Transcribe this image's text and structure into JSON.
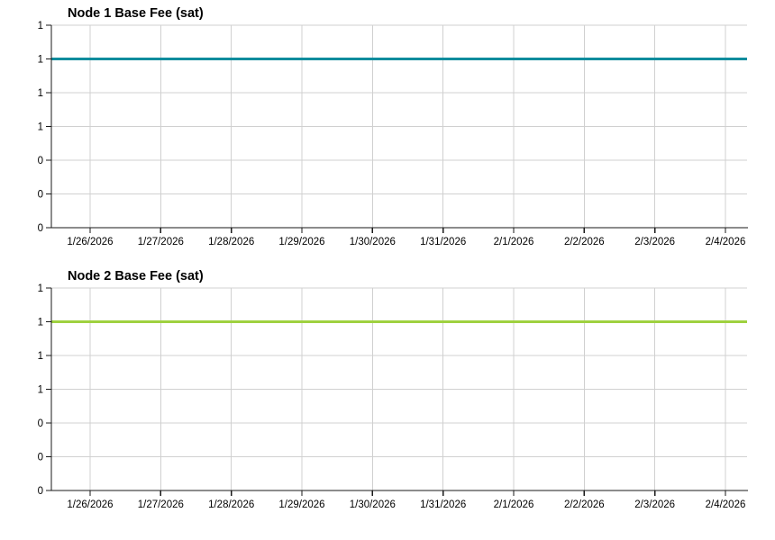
{
  "page": {
    "background": "#ffffff"
  },
  "chart_data": [
    {
      "type": "line",
      "title": "Node 1 Base Fee (sat)",
      "xlabel": "",
      "ylabel": "",
      "x": [
        "1/26/2026",
        "1/27/2026",
        "1/28/2026",
        "1/29/2026",
        "1/30/2026",
        "1/31/2026",
        "2/1/2026",
        "2/2/2026",
        "2/3/2026",
        "2/4/2026"
      ],
      "series": [
        {
          "name": "Node 1 Base Fee (sat)",
          "values": [
            1,
            1,
            1,
            1,
            1,
            1,
            1,
            1,
            1,
            1
          ],
          "color": "#0e8c9d"
        }
      ],
      "ylim": [
        0,
        1.2
      ],
      "y_ticks": [
        0,
        0.2,
        0.4,
        0.6,
        0.8,
        1,
        1.2
      ],
      "y_tick_labels": [
        "0",
        "0",
        "0",
        "1",
        "1",
        "1",
        "1"
      ],
      "grid": true,
      "legend": "none",
      "colors": {
        "grid": "#d0d0d0",
        "axis": "#1a1a1a",
        "tick_text": "#000000"
      }
    },
    {
      "type": "line",
      "title": "Node 2 Base Fee (sat)",
      "xlabel": "",
      "ylabel": "",
      "x": [
        "1/26/2026",
        "1/27/2026",
        "1/28/2026",
        "1/29/2026",
        "1/30/2026",
        "1/31/2026",
        "2/1/2026",
        "2/2/2026",
        "2/3/2026",
        "2/4/2026"
      ],
      "series": [
        {
          "name": "Node 2 Base Fee (sat)",
          "values": [
            1,
            1,
            1,
            1,
            1,
            1,
            1,
            1,
            1,
            1
          ],
          "color": "#9fd13f"
        }
      ],
      "ylim": [
        0,
        1.2
      ],
      "y_ticks": [
        0,
        0.2,
        0.4,
        0.6,
        0.8,
        1,
        1.2
      ],
      "y_tick_labels": [
        "0",
        "0",
        "0",
        "1",
        "1",
        "1",
        "1"
      ],
      "grid": true,
      "legend": "none",
      "colors": {
        "grid": "#d0d0d0",
        "axis": "#1a1a1a",
        "tick_text": "#000000"
      }
    }
  ]
}
